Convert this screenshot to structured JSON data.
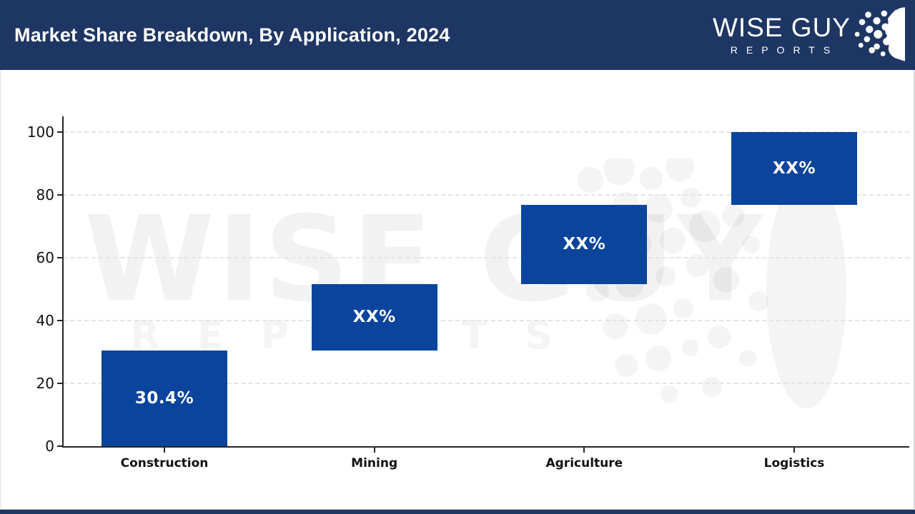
{
  "header": {
    "title": "Market Share Breakdown, By Application, 2024",
    "bg_color": "#1e3664",
    "text_color": "#ffffff"
  },
  "logo": {
    "name": "WISE GUY",
    "sub": "REPORTS"
  },
  "watermark": {
    "name": "WISE GUY",
    "sub": "REPORTS"
  },
  "chart_data": {
    "type": "bar",
    "subtype": "floating-waterfall-segments",
    "title": "Market Share Breakdown, By Application, 2024",
    "categories": [
      "Construction",
      "Mining",
      "Agriculture",
      "Logistics"
    ],
    "segments": [
      {
        "category": "Construction",
        "start": 0,
        "end": 30.4,
        "value": 30.4,
        "value_label": "30.4%"
      },
      {
        "category": "Mining",
        "start": 30.4,
        "end": 51.7,
        "value": 21.3,
        "value_label": "XX%"
      },
      {
        "category": "Agriculture",
        "start": 51.7,
        "end": 76.9,
        "value": 25.2,
        "value_label": "XX%"
      },
      {
        "category": "Logistics",
        "start": 76.9,
        "end": 100,
        "value": 23.1,
        "value_label": "XX%"
      }
    ],
    "yticks": [
      0,
      20,
      40,
      60,
      80,
      100
    ],
    "ylim": [
      0,
      105
    ],
    "xlabel": "",
    "ylabel": "",
    "grid": "horizontal-dashed",
    "legend": "none",
    "bar_color": "#0a449c",
    "bar_label_color": "#ffffff"
  }
}
